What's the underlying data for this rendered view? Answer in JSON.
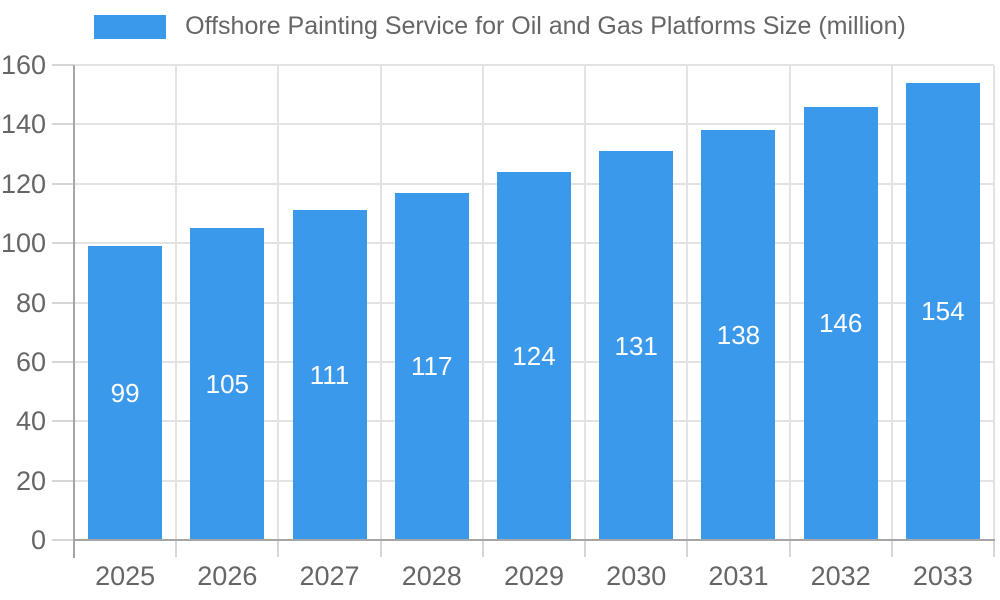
{
  "legend": {
    "label": "Offshore Painting Service for Oil and Gas Platforms Size (million)"
  },
  "chart_data": {
    "type": "bar",
    "title": "Offshore Painting Service for Oil and Gas Platforms Size (million)",
    "categories": [
      "2025",
      "2026",
      "2027",
      "2028",
      "2029",
      "2030",
      "2031",
      "2032",
      "2033"
    ],
    "values": [
      99,
      105,
      111,
      117,
      124,
      131,
      138,
      146,
      154
    ],
    "xlabel": "",
    "ylabel": "",
    "ylim": [
      0,
      160
    ],
    "ytick_step": 20,
    "yticks": [
      0,
      20,
      40,
      60,
      80,
      100,
      120,
      140,
      160
    ],
    "grid": true,
    "legend_position": "top",
    "bar_labels_inside": true,
    "colors": {
      "bar": "#3b99ec",
      "bar_label": "#ffffff",
      "grid": "#e3e3e3",
      "tick": "#d6d6d6",
      "axis": "#a6a6a6",
      "text": "#666666",
      "background": "#ffffff"
    }
  }
}
